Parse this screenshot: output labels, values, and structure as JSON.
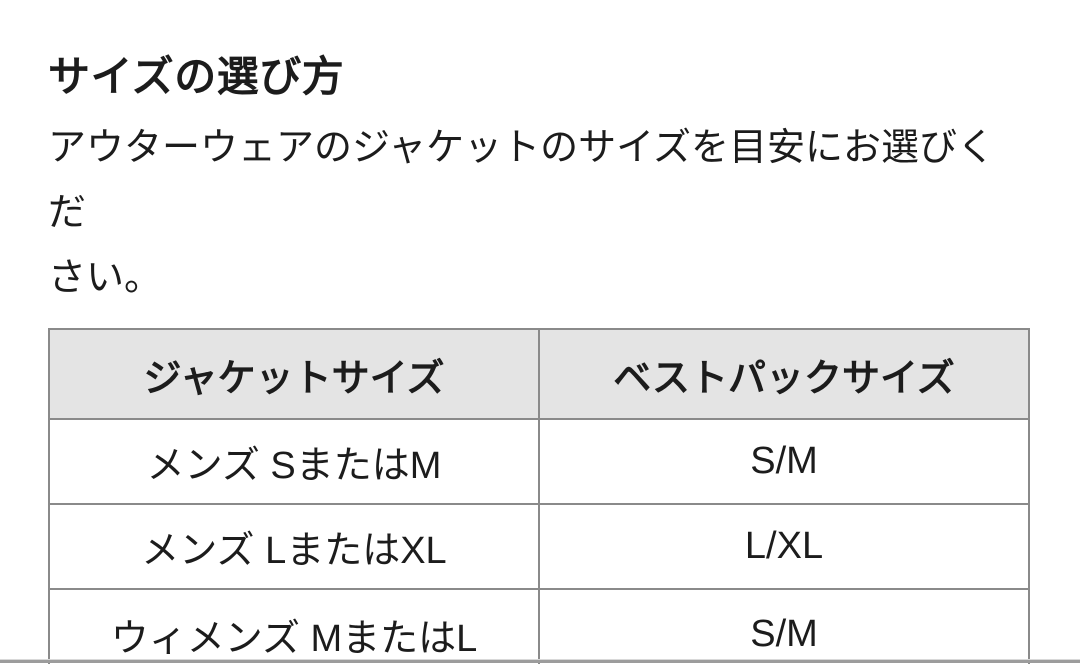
{
  "colors": {
    "border": "#8a8a8a",
    "header-bg": "#e4e4e4",
    "text": "#1c1c1c",
    "bottom-bar": "#9c9c9c",
    "bottom-bar-top": "#d9d9d9"
  },
  "page": {
    "title": "サイズの選び方",
    "description": "アウターウェアのジャケットのサイズを目安にお選びください。",
    "description_lines": [
      "アウターウェアのジャケットのサイズを目安にお選びくだ",
      "さい。"
    ]
  },
  "table": {
    "headers": [
      "ジャケットサイズ",
      "ベストパックサイズ"
    ],
    "rows": [
      [
        "メンズ SまたはM",
        "S/M"
      ],
      [
        "メンズ LまたはXL",
        "L/XL"
      ],
      [
        "ウィメンズ MまたはL",
        "S/M"
      ]
    ]
  }
}
